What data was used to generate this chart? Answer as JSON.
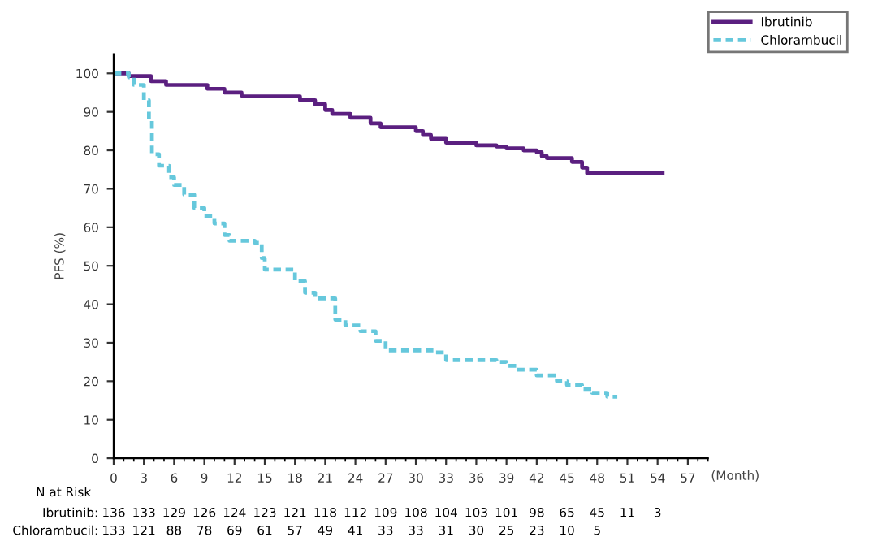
{
  "chart_data": {
    "type": "step",
    "xlabel": "(Month)",
    "ylabel": "PFS (%)",
    "legend": "top right",
    "grid": false,
    "xlim": [
      0,
      59
    ],
    "xticks": [
      0,
      3,
      6,
      9,
      12,
      15,
      18,
      21,
      24,
      27,
      30,
      33,
      36,
      39,
      42,
      45,
      48,
      51,
      54,
      57
    ],
    "ylim": [
      0,
      105
    ],
    "yticks": [
      0,
      10,
      20,
      30,
      40,
      50,
      60,
      70,
      80,
      90,
      100
    ],
    "series": [
      {
        "name": "Ibrutinib",
        "color": "#5b1f80",
        "line_style": "solid",
        "x": [
          0,
          1.5,
          3.7,
          5.2,
          9.3,
          11,
          12.7,
          18.5,
          20,
          21,
          21.7,
          23.5,
          25.5,
          26.5,
          30,
          30.7,
          31.5,
          33,
          36,
          38,
          39,
          40.7,
          42,
          42.5,
          43,
          45.5,
          46.5,
          47,
          54.5
        ],
        "values": [
          100,
          99.3,
          98,
          97,
          96,
          95,
          94,
          93,
          92,
          90.5,
          89.5,
          88.5,
          87,
          86,
          85,
          84,
          83,
          82,
          81.3,
          81,
          80.5,
          80,
          79.5,
          78.5,
          78,
          77,
          75.5,
          74,
          74
        ]
      },
      {
        "name": "Chlorambucil",
        "color": "#66c8dc",
        "line_style": "dashed",
        "x": [
          0,
          1.5,
          2,
          3,
          3.5,
          3.8,
          4.5,
          5.5,
          6,
          7,
          8,
          9,
          10,
          11,
          11.5,
          14,
          14.7,
          15,
          18,
          19,
          20,
          21.5,
          22,
          23,
          24.5,
          26,
          27,
          32,
          33,
          38,
          39,
          40,
          42,
          44,
          45,
          46.5,
          47.5,
          49,
          50
        ],
        "values": [
          100,
          99,
          97,
          93,
          88,
          79,
          76,
          73,
          71,
          68.5,
          65,
          63,
          61,
          58,
          56.5,
          56,
          52,
          49,
          46,
          43,
          41.5,
          41.5,
          36,
          34.5,
          33,
          30.5,
          28,
          27.5,
          25.5,
          25,
          24,
          23,
          21.5,
          20,
          19,
          18,
          17,
          16,
          16
        ]
      }
    ],
    "annotations": [
      "N at Risk",
      "Ibrutinib:",
      "136 133 129 126 124 123 121 118 112 109 108 104 103 101 98 65 45 11 3",
      "Chlorambucil:",
      "133 121 88 78 69 61 57 49 41 33 33 31 30 25 23 10 5"
    ]
  }
}
